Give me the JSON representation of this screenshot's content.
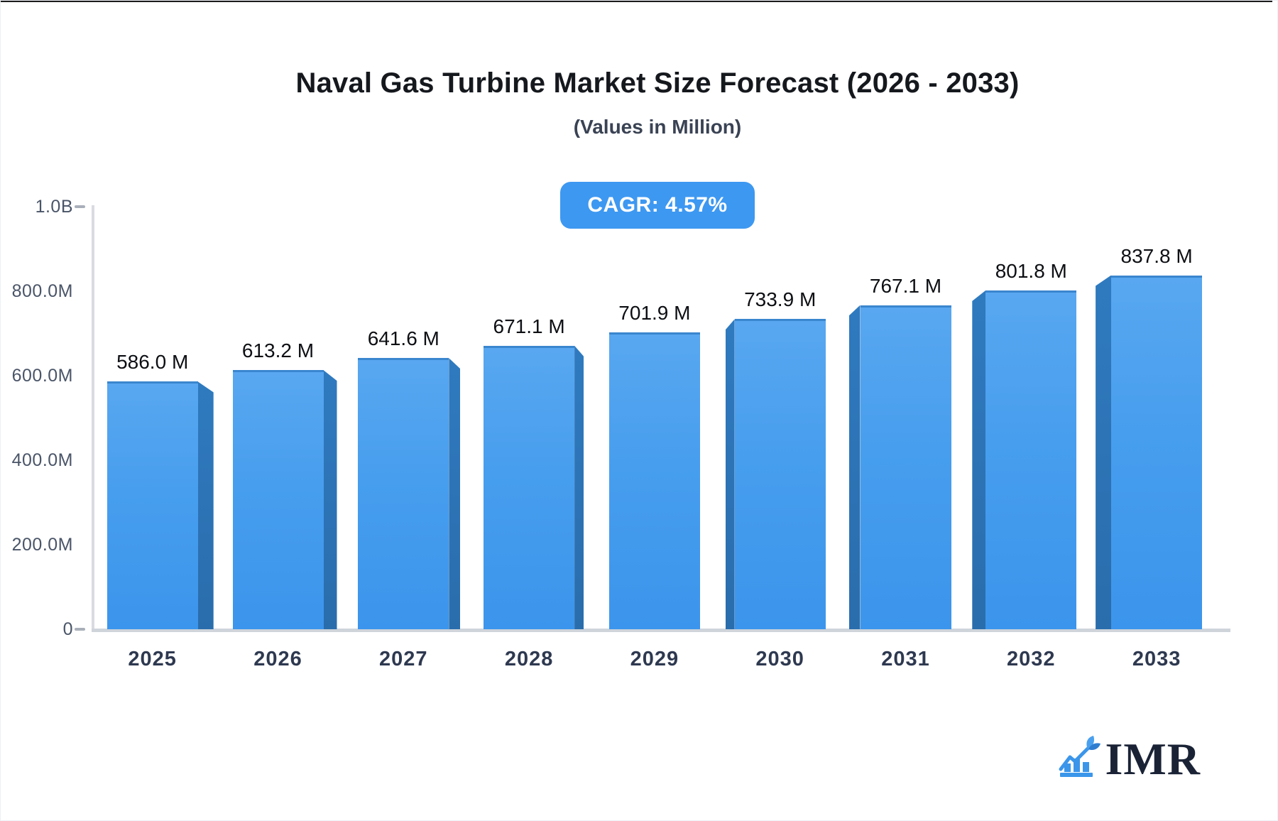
{
  "header": {
    "title": "Naval Gas Turbine Market Size Forecast (2026 - 2033)",
    "subtitle": "(Values in Million)",
    "cagr_label": "CAGR: 4.57%"
  },
  "chart_data": {
    "type": "bar",
    "title": "Naval Gas Turbine Market Size Forecast (2026 - 2033)",
    "subtitle": "(Values in Million)",
    "cagr": "4.57%",
    "categories": [
      "2025",
      "2026",
      "2027",
      "2028",
      "2029",
      "2030",
      "2031",
      "2032",
      "2033"
    ],
    "values": [
      586.0,
      613.2,
      641.6,
      671.1,
      701.9,
      733.9,
      767.1,
      801.8,
      837.8
    ],
    "value_labels": [
      "586.0 M",
      "613.2 M",
      "641.6 M",
      "671.1 M",
      "701.9 M",
      "733.9 M",
      "767.1 M",
      "801.8 M",
      "837.8 M"
    ],
    "ylim": [
      0,
      1000
    ],
    "yticks": [
      {
        "label": "1.0B",
        "value": 1000,
        "tick": true
      },
      {
        "label": "800.0M",
        "value": 800,
        "tick": false
      },
      {
        "label": "600.0M",
        "value": 600,
        "tick": false
      },
      {
        "label": "400.0M",
        "value": 400,
        "tick": false
      },
      {
        "label": "200.0M",
        "value": 200,
        "tick": false
      },
      {
        "label": "0",
        "value": 0,
        "tick": true
      }
    ],
    "grid": false,
    "legend": "none",
    "colors": {
      "bar_face_top": "#58a7f0",
      "bar_face_bottom": "#3c95ec",
      "bar_top_edge": "#3a86cf",
      "bar_side": "#2d75b7",
      "badge_bg": "#3d98f1",
      "axis_line": "#d5d9e0",
      "y_label_text": "#4a5568",
      "x_label_text": "#2e3950",
      "value_label_text": "#0d0f13"
    }
  },
  "logo": {
    "text": "IMR",
    "icon": "bar-chart-leaf-icon"
  }
}
